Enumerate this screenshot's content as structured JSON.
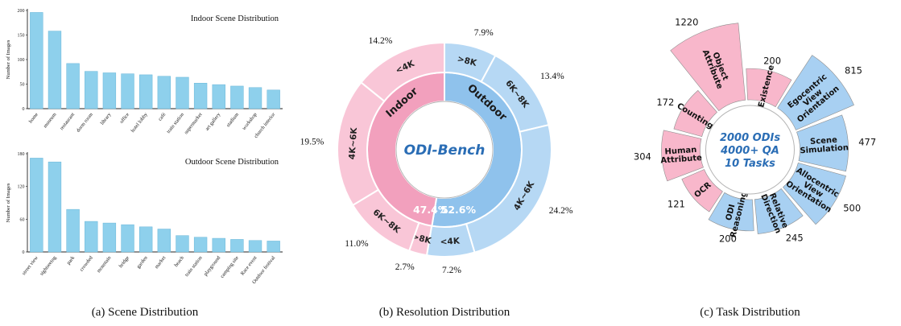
{
  "captions": {
    "a": "(a) Scene Distribution",
    "b": "(b) Resolution Distribution",
    "c": "(c) Task Distribution"
  },
  "colors": {
    "bar": "#8ed0ec",
    "bar_edge": "#69b6d8",
    "pink_outer": "#f9c6d7",
    "pink_inner": "#f2a0bd",
    "blue_outer": "#b6d8f4",
    "blue_inner": "#8fc2ec",
    "rose_pink": "#f8b7cb",
    "rose_blue": "#a8d0f2",
    "accent_text": "#2a6db5"
  },
  "chart_data": [
    {
      "id": "indoor_bar",
      "type": "bar",
      "title": "Indoor Scene Distribution",
      "xlabel": "",
      "ylabel": "Number of Images",
      "categories": [
        "home",
        "museum",
        "restaurant",
        "dorm room",
        "library",
        "office",
        "hotel lobby",
        "café",
        "train station",
        "supermarket",
        "art gallery",
        "stadium",
        "workshop",
        "church interior"
      ],
      "values": [
        196,
        158,
        92,
        76,
        73,
        71,
        69,
        66,
        64,
        52,
        49,
        46,
        43,
        38
      ],
      "ylim": [
        0,
        200
      ],
      "yticks": [
        0,
        50,
        100,
        150,
        200
      ]
    },
    {
      "id": "outdoor_bar",
      "type": "bar",
      "title": "Outdoor Scene Distribution",
      "xlabel": "",
      "ylabel": "Number of Images",
      "categories": [
        "street view",
        "sightseeing",
        "park",
        "crowded",
        "mountain",
        "bridge",
        "garden",
        "market",
        "beach",
        "train station",
        "playground",
        "camping site",
        "Race event",
        "Outdoor festival"
      ],
      "values": [
        172,
        165,
        78,
        56,
        53,
        50,
        46,
        42,
        30,
        27,
        25,
        23,
        21,
        20
      ],
      "ylim": [
        0,
        180
      ],
      "yticks": [
        0,
        60,
        120,
        180
      ]
    },
    {
      "id": "resolution_donut",
      "type": "pie",
      "center_label": "ODI-Bench",
      "inner_ring": [
        {
          "label": "Outdoor",
          "value": 52.6,
          "color_key": "blue_inner"
        },
        {
          "label": "Indoor",
          "value": 47.4,
          "color_key": "pink_inner"
        }
      ],
      "outer_ring": [
        {
          "label": ">8K",
          "value": 7.9,
          "side": "Outdoor"
        },
        {
          "label": "6K~8K",
          "value": 13.4,
          "side": "Outdoor"
        },
        {
          "label": "4K~6K",
          "value": 24.2,
          "side": "Outdoor"
        },
        {
          "label": "<4K",
          "value": 7.2,
          "side": "Outdoor"
        },
        {
          "label": ">8K",
          "value": 2.7,
          "side": "Indoor"
        },
        {
          "label": "6K~8K",
          "value": 11.0,
          "side": "Indoor"
        },
        {
          "label": "4K~6K",
          "value": 19.5,
          "side": "Indoor"
        },
        {
          "label": "<4K",
          "value": 14.2,
          "side": "Indoor"
        }
      ]
    },
    {
      "id": "task_rose",
      "type": "pie",
      "center_lines": [
        "2000 ODIs",
        "4000+ QA",
        "10 Tasks"
      ],
      "segments": [
        {
          "label": "Existence",
          "value": 200,
          "group": "pink"
        },
        {
          "label": "Egocentric View Orientation",
          "value": 815,
          "group": "blue"
        },
        {
          "label": "Scene Simulation",
          "value": 477,
          "group": "blue"
        },
        {
          "label": "Allocentric View Orientation",
          "value": 500,
          "group": "blue"
        },
        {
          "label": "Relative Direction",
          "value": 245,
          "group": "blue"
        },
        {
          "label": "ODI Reasoning",
          "value": 200,
          "group": "blue"
        },
        {
          "label": "OCR",
          "value": 121,
          "group": "pink"
        },
        {
          "label": "Human Attribute",
          "value": 304,
          "group": "pink"
        },
        {
          "label": "Counting",
          "value": 172,
          "group": "pink"
        },
        {
          "label": "Object Attribute",
          "value": 1220,
          "group": "pink"
        }
      ]
    }
  ]
}
